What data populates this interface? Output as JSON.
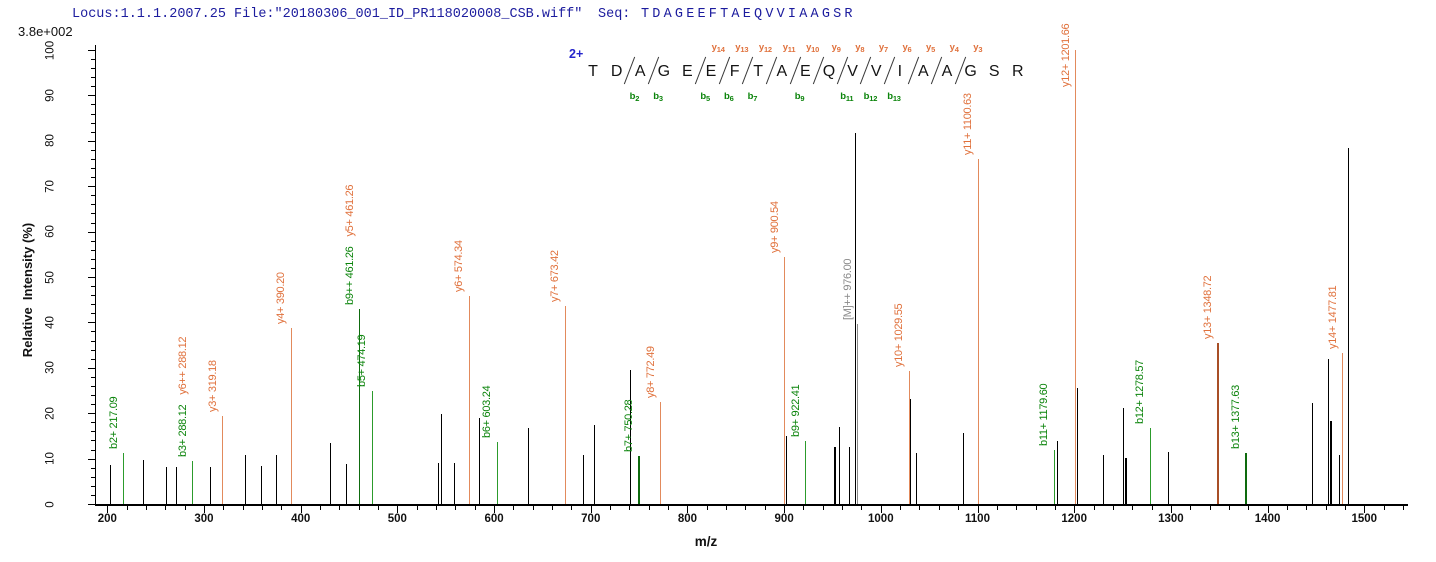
{
  "header": {
    "locus_file": "Locus:1.1.1.2007.25 File:\"20180306_001_ID_PR118020008_CSB.wiff\"",
    "seq_prefix": "Seq:",
    "sequence": "TDAGEEFTAEQVVIAAGSR"
  },
  "annotations": {
    "base_peak_intensity": "3.8e+002",
    "charge_state": "2+"
  },
  "colors": {
    "header_text": "#1c1c9e",
    "charge_text": "#2525cc",
    "y_ion_label": "#e0713c",
    "y_ion_line": "#e28a5c",
    "y_ion_line_dark": "#a84f26",
    "b_ion_label": "#0b840b",
    "b_ion_line": "#2c9b2c",
    "b_ion_line_dark": "#0e6b0e",
    "precursor": "#8a8a8a",
    "peak_default": "#000000",
    "axis": "#000000"
  },
  "sequence_overlay": {
    "residues": [
      "T",
      "D",
      "A",
      "G",
      "E",
      "E",
      "F",
      "T",
      "A",
      "E",
      "Q",
      "V",
      "V",
      "I",
      "A",
      "A",
      "G",
      "S",
      "R"
    ],
    "y_ions": [
      {
        "name": "y14",
        "after_residue": 5
      },
      {
        "name": "y13",
        "after_residue": 6
      },
      {
        "name": "y12",
        "after_residue": 7
      },
      {
        "name": "y11",
        "after_residue": 8
      },
      {
        "name": "y10",
        "after_residue": 9
      },
      {
        "name": "y9",
        "after_residue": 10
      },
      {
        "name": "y8",
        "after_residue": 11
      },
      {
        "name": "y7",
        "after_residue": 12
      },
      {
        "name": "y6",
        "after_residue": 13
      },
      {
        "name": "y5",
        "after_residue": 14
      },
      {
        "name": "y4",
        "after_residue": 15
      },
      {
        "name": "y3",
        "after_residue": 16
      }
    ],
    "b_ions": [
      {
        "name": "b2",
        "after_residue": 2
      },
      {
        "name": "b3",
        "after_residue": 3
      },
      {
        "name": "b5",
        "after_residue": 5
      },
      {
        "name": "b6",
        "after_residue": 6
      },
      {
        "name": "b7",
        "after_residue": 7
      },
      {
        "name": "b9",
        "after_residue": 9
      },
      {
        "name": "b11",
        "after_residue": 11
      },
      {
        "name": "b12",
        "after_residue": 12
      },
      {
        "name": "b13",
        "after_residue": 13
      }
    ]
  },
  "chart_data": {
    "type": "bar",
    "subtype": "ms2-fragment-spectrum",
    "title": "",
    "xlabel": "m/z",
    "ylabel": "Relative  Intensity (%)",
    "xlim": [
      186,
      1542
    ],
    "ylim": [
      0,
      100
    ],
    "x_ticks_major": [
      200,
      300,
      400,
      500,
      600,
      700,
      800,
      900,
      1000,
      1100,
      1200,
      1300,
      1400,
      1500
    ],
    "x_tick_minor_step": 20,
    "y_ticks_major": [
      0,
      10,
      20,
      30,
      40,
      50,
      60,
      70,
      80,
      90,
      100
    ],
    "y_tick_minor_step": 2,
    "grid": false,
    "peaks": [
      {
        "mz": 188,
        "intensity": 8.1,
        "type": "unassigned"
      },
      {
        "mz": 203,
        "intensity": 8.7,
        "type": "unassigned"
      },
      {
        "mz": 217.09,
        "intensity": 11.3,
        "type": "b",
        "label": "b2+ 217.09"
      },
      {
        "mz": 237,
        "intensity": 9.6,
        "type": "unassigned"
      },
      {
        "mz": 261,
        "intensity": 8.1,
        "type": "unassigned"
      },
      {
        "mz": 272,
        "intensity": 8.1,
        "type": "unassigned"
      },
      {
        "mz": 288.12,
        "intensity": 9.5,
        "type": "b",
        "labels": [
          {
            "text": "b3+ 288.12",
            "type": "b"
          },
          {
            "text": "y6++ 288.12",
            "type": "y"
          }
        ]
      },
      {
        "mz": 307,
        "intensity": 8.1,
        "type": "unassigned"
      },
      {
        "mz": 319.18,
        "intensity": 19.4,
        "type": "y",
        "label": "y3+ 319.18"
      },
      {
        "mz": 343,
        "intensity": 10.8,
        "type": "unassigned"
      },
      {
        "mz": 359,
        "intensity": 8.4,
        "type": "unassigned"
      },
      {
        "mz": 375,
        "intensity": 10.8,
        "type": "unassigned"
      },
      {
        "mz": 390.2,
        "intensity": 38.8,
        "type": "y",
        "label": "y4+ 390.20"
      },
      {
        "mz": 431,
        "intensity": 13.4,
        "type": "unassigned"
      },
      {
        "mz": 447,
        "intensity": 8.9,
        "type": "unassigned"
      },
      {
        "mz": 461.26,
        "intensity": 43.0,
        "type": "b-dark",
        "labels": [
          {
            "text": "b9++ 461.26",
            "type": "b"
          },
          {
            "text": "y5+ 461.26",
            "type": "y"
          }
        ]
      },
      {
        "mz": 474.19,
        "intensity": 24.9,
        "type": "b",
        "label": "b5+ 474.19"
      },
      {
        "mz": 543,
        "intensity": 9.1,
        "type": "unassigned"
      },
      {
        "mz": 546,
        "intensity": 19.8,
        "type": "unassigned"
      },
      {
        "mz": 559,
        "intensity": 9.1,
        "type": "unassigned"
      },
      {
        "mz": 574.34,
        "intensity": 45.8,
        "type": "y",
        "label": "y6+ 574.34"
      },
      {
        "mz": 585,
        "intensity": 18.9,
        "type": "unassigned"
      },
      {
        "mz": 603.24,
        "intensity": 13.7,
        "type": "b",
        "label": "b6+ 603.24"
      },
      {
        "mz": 636,
        "intensity": 16.8,
        "type": "unassigned"
      },
      {
        "mz": 673.42,
        "intensity": 43.6,
        "type": "y",
        "label": "y7+ 673.42"
      },
      {
        "mz": 693,
        "intensity": 10.8,
        "type": "unassigned"
      },
      {
        "mz": 704,
        "intensity": 17.4,
        "type": "unassigned"
      },
      {
        "mz": 741,
        "intensity": 29.5,
        "type": "unassigned"
      },
      {
        "mz": 750.28,
        "intensity": 10.6,
        "type": "b-dark",
        "width": 2,
        "label": "b7+ 750.28"
      },
      {
        "mz": 772.49,
        "intensity": 22.5,
        "type": "y",
        "label": "y8+ 772.49"
      },
      {
        "mz": 900.54,
        "intensity": 54.3,
        "type": "y",
        "label": "y9+ 900.54"
      },
      {
        "mz": 902,
        "intensity": 15.0,
        "type": "unassigned"
      },
      {
        "mz": 922.41,
        "intensity": 13.9,
        "type": "b",
        "label": "b9+ 922.41"
      },
      {
        "mz": 953,
        "intensity": 12.5,
        "type": "unassigned",
        "width": 2
      },
      {
        "mz": 957.5,
        "intensity": 17.0,
        "type": "unassigned"
      },
      {
        "mz": 967.5,
        "intensity": 12.5,
        "type": "unassigned"
      },
      {
        "mz": 974.3,
        "intensity": 81.8,
        "type": "unassigned"
      },
      {
        "mz": 976.0,
        "intensity": 39.6,
        "type": "precursor",
        "label": "[M]++ 976.00"
      },
      {
        "mz": 1029.55,
        "intensity": 29.3,
        "type": "y",
        "label": "y10+ 1029.55"
      },
      {
        "mz": 1031,
        "intensity": 23.1,
        "type": "unassigned"
      },
      {
        "mz": 1037,
        "intensity": 11.3,
        "type": "unassigned"
      },
      {
        "mz": 1086,
        "intensity": 15.7,
        "type": "unassigned"
      },
      {
        "mz": 1100.63,
        "intensity": 75.9,
        "type": "y",
        "label": "y11+ 1100.63"
      },
      {
        "mz": 1179.6,
        "intensity": 12.0,
        "type": "b",
        "label": "b11+ 1179.60"
      },
      {
        "mz": 1183,
        "intensity": 13.9,
        "type": "unassigned"
      },
      {
        "mz": 1201.66,
        "intensity": 100,
        "type": "y",
        "label": "y12+ 1201.66",
        "label_dy": 37
      },
      {
        "mz": 1203.5,
        "intensity": 25.6,
        "type": "unassigned"
      },
      {
        "mz": 1230,
        "intensity": 10.9,
        "type": "unassigned"
      },
      {
        "mz": 1251,
        "intensity": 21.2,
        "type": "unassigned"
      },
      {
        "mz": 1254,
        "intensity": 10.2,
        "type": "unassigned",
        "width": 2
      },
      {
        "mz": 1278.57,
        "intensity": 16.8,
        "type": "b",
        "label": "b12+ 1278.57"
      },
      {
        "mz": 1298,
        "intensity": 11.5,
        "type": "unassigned"
      },
      {
        "mz": 1348.72,
        "intensity": 35.5,
        "type": "y-dark",
        "width": 2,
        "label": "y13+ 1348.72"
      },
      {
        "mz": 1377.63,
        "intensity": 11.3,
        "type": "b-dark",
        "width": 2,
        "label": "b13+ 1377.63"
      },
      {
        "mz": 1446,
        "intensity": 22.3,
        "type": "unassigned"
      },
      {
        "mz": 1463.5,
        "intensity": 32.0,
        "type": "unassigned"
      },
      {
        "mz": 1465.5,
        "intensity": 18.3,
        "type": "unassigned",
        "width": 2
      },
      {
        "mz": 1474,
        "intensity": 10.7,
        "type": "unassigned"
      },
      {
        "mz": 1477.81,
        "intensity": 33.3,
        "type": "y",
        "label": "y14+ 1477.81"
      },
      {
        "mz": 1483.5,
        "intensity": 78.5,
        "type": "unassigned"
      }
    ]
  }
}
